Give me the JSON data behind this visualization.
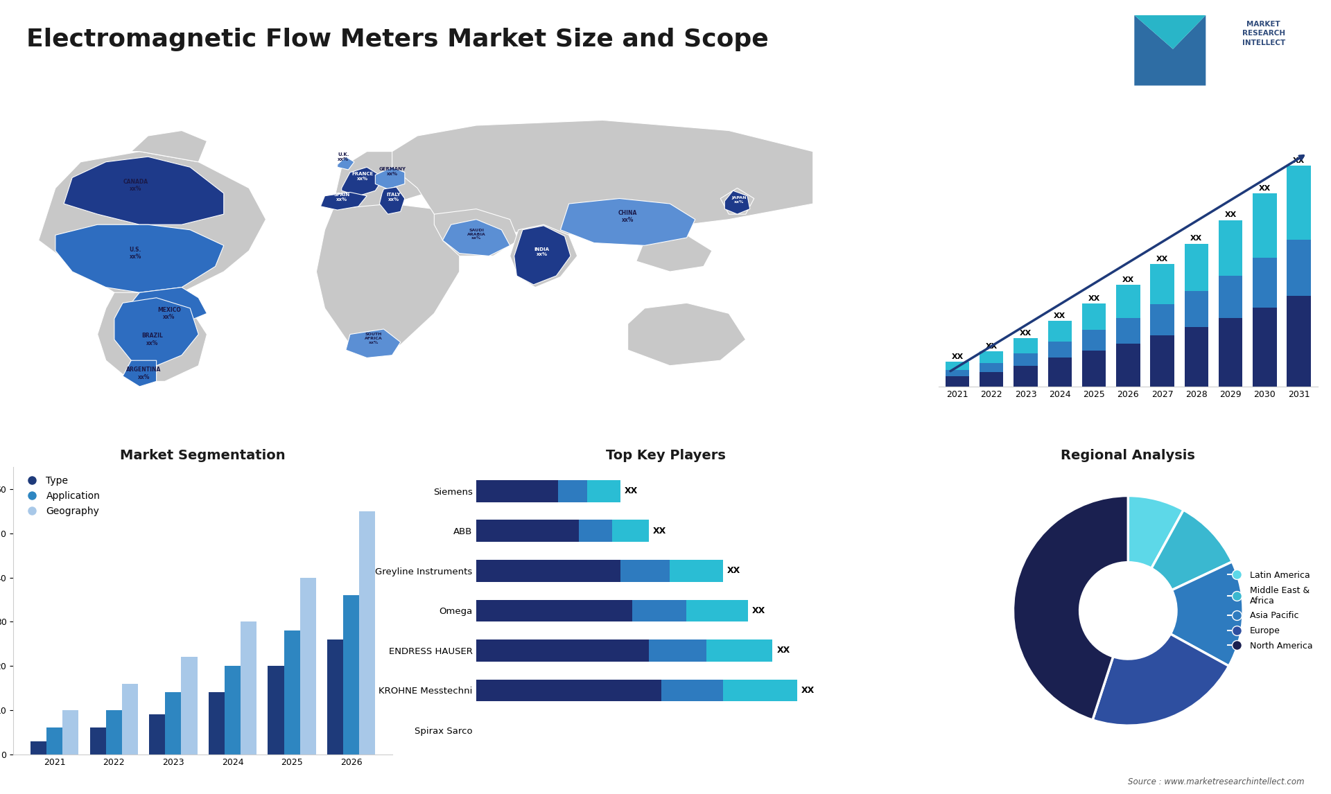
{
  "title": "Electromagnetic Flow Meters Market Size and Scope",
  "title_fontsize": 26,
  "background_color": "#ffffff",
  "bar_years": [
    "2021",
    "2022",
    "2023",
    "2024",
    "2025",
    "2026",
    "2027",
    "2028",
    "2029",
    "2030",
    "2031"
  ],
  "bar_segment1": [
    1.0,
    1.4,
    2.0,
    2.8,
    3.5,
    4.2,
    5.0,
    5.8,
    6.7,
    7.7,
    8.8
  ],
  "bar_segment2": [
    0.6,
    0.9,
    1.2,
    1.6,
    2.0,
    2.5,
    3.0,
    3.5,
    4.1,
    4.8,
    5.5
  ],
  "bar_segment3": [
    0.8,
    1.1,
    1.5,
    2.0,
    2.6,
    3.2,
    3.9,
    4.6,
    5.4,
    6.3,
    7.2
  ],
  "bar_color1": "#1e2d6e",
  "bar_color2": "#2e7bbf",
  "bar_color3": "#2abdd4",
  "bar_label": "XX",
  "seg_years": [
    "2021",
    "2022",
    "2023",
    "2024",
    "2025",
    "2026"
  ],
  "seg_type": [
    3,
    6,
    9,
    14,
    20,
    26
  ],
  "seg_application": [
    6,
    10,
    14,
    20,
    28,
    36
  ],
  "seg_geography": [
    10,
    16,
    22,
    30,
    40,
    55
  ],
  "seg_color_type": "#1e3a7a",
  "seg_color_app": "#2e86c1",
  "seg_color_geo": "#a8c8e8",
  "seg_title": "Market Segmentation",
  "seg_legend": [
    "Type",
    "Application",
    "Geography"
  ],
  "players": [
    "Spirax Sarco",
    "KROHNE Messtechni",
    "ENDRESS HAUSER",
    "Omega",
    "Greyline Instruments",
    "ABB",
    "Siemens"
  ],
  "player_val1": [
    0.0,
    4.5,
    4.2,
    3.8,
    3.5,
    2.5,
    2.0
  ],
  "player_val2": [
    0.0,
    1.5,
    1.4,
    1.3,
    1.2,
    0.8,
    0.7
  ],
  "player_val3": [
    0.0,
    1.8,
    1.6,
    1.5,
    1.3,
    0.9,
    0.8
  ],
  "player_color1": "#1e2d6e",
  "player_color2": "#2e7bbf",
  "player_color3": "#2abdd4",
  "players_title": "Top Key Players",
  "player_label": "XX",
  "pie_values": [
    8,
    10,
    15,
    22,
    45
  ],
  "pie_colors": [
    "#5dd8e8",
    "#3ab8d0",
    "#2e7bbf",
    "#2e4fa0",
    "#1a2050"
  ],
  "pie_labels": [
    "Latin America",
    "Middle East &\nAfrica",
    "Asia Pacific",
    "Europe",
    "North America"
  ],
  "pie_title": "Regional Analysis",
  "source_text": "Source : www.marketresearchintellect.com"
}
